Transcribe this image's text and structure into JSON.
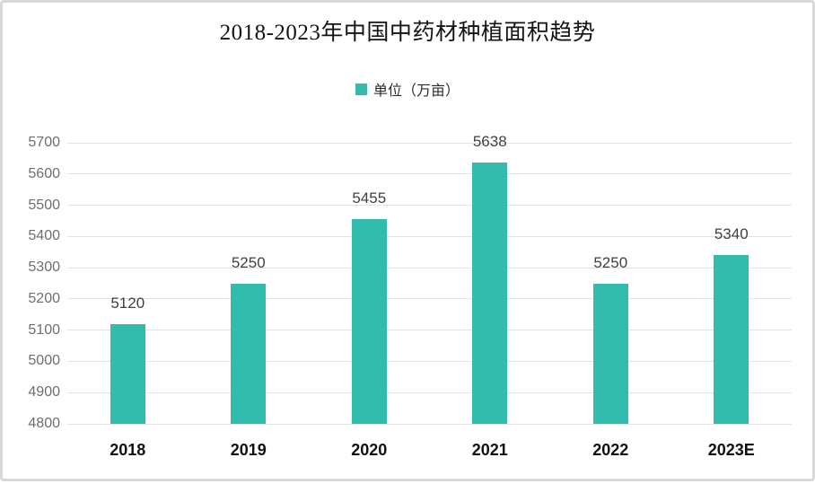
{
  "title": "2018-2023年中国中药材种植面积趋势",
  "legend": {
    "label": "单位（万亩）",
    "swatch_color": "#31bcad"
  },
  "colors": {
    "bar": "#31bcad",
    "grid": "#e2e2e2",
    "y_label": "#6e6e6e",
    "data_label": "#404040",
    "x_label": "#111111",
    "frame_border": "#d9d9d9"
  },
  "chart_data": {
    "type": "bar",
    "title": "2018-2023年中国中药材种植面积趋势",
    "legend_entries": [
      "单位（万亩）"
    ],
    "legend_position": "top",
    "categories": [
      "2018",
      "2019",
      "2020",
      "2021",
      "2022",
      "2023E"
    ],
    "values": [
      5120,
      5250,
      5455,
      5638,
      5250,
      5340
    ],
    "data_labels": [
      "5120",
      "5250",
      "5455",
      "5638",
      "5250",
      "5340"
    ],
    "xlabel": "",
    "ylabel": "",
    "ylim": [
      4800,
      5700
    ],
    "ytick_step": 100,
    "yticks": [
      4800,
      4900,
      5000,
      5100,
      5200,
      5300,
      5400,
      5500,
      5600,
      5700
    ],
    "grid": true
  }
}
